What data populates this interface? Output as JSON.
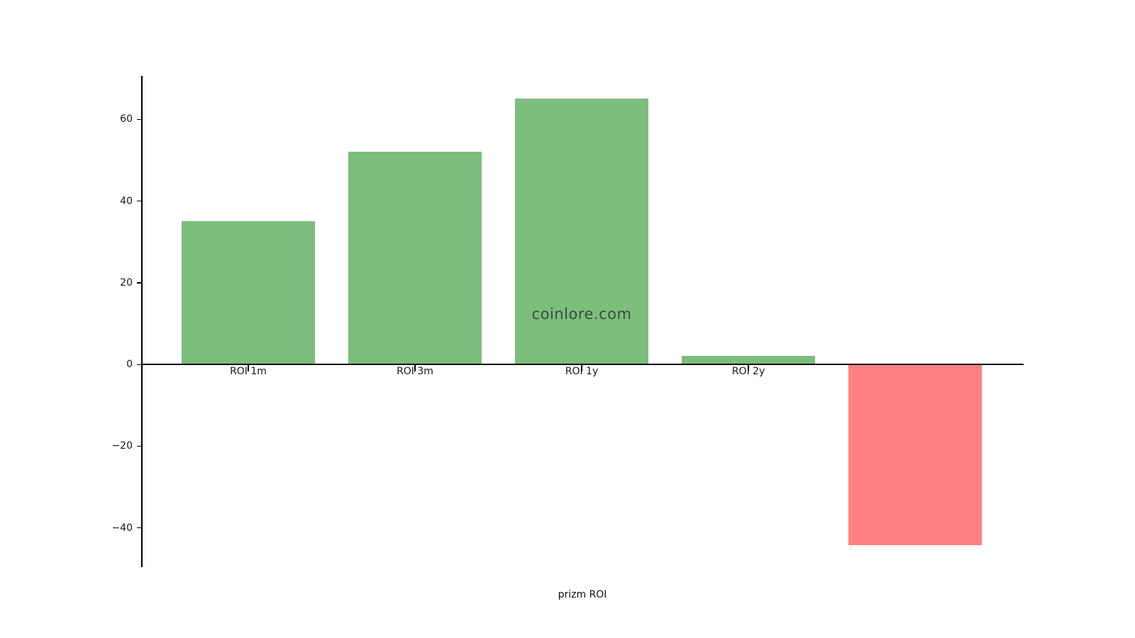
{
  "figure": {
    "watermark": "coinlore.com",
    "xlabel": "prizm ROI"
  },
  "chart_data": {
    "type": "bar",
    "title": "",
    "xlabel": "prizm ROI",
    "ylabel": "",
    "categories": [
      "ROI 1m",
      "ROI 3m",
      "ROI 1y",
      "ROI 2y",
      ""
    ],
    "values": [
      35,
      52,
      65,
      2,
      -44
    ],
    "positive_color": "#7cbe7c",
    "negative_color": "#ff8080",
    "yticks": [
      60,
      40,
      20,
      0,
      -20,
      -40
    ],
    "ylim": [
      -49.5,
      70.5
    ],
    "grid": false,
    "legend": "none",
    "watermark": "coinlore.com",
    "axis_color": "#000000",
    "tick_label_color": "#1a1a1a"
  }
}
